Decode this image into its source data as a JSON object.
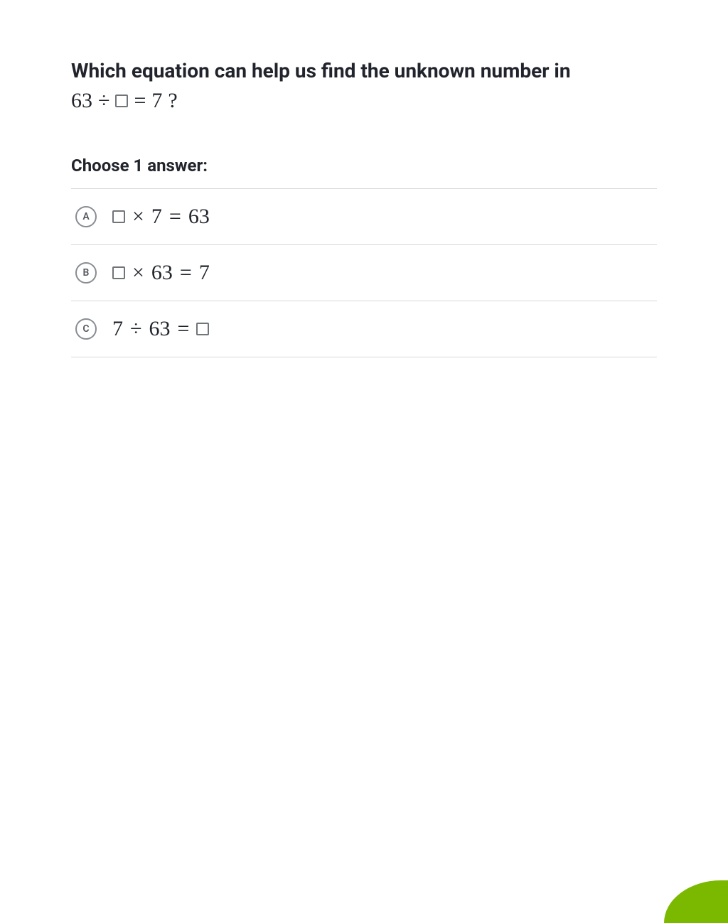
{
  "question": {
    "prompt_text": "Which equation can help us find the unknown number in",
    "equation": {
      "lhs_number": "63",
      "operator": "÷",
      "rhs_number": "7",
      "equals": "=",
      "trailing": "?"
    },
    "instruction": "Choose 1 answer:"
  },
  "answers": [
    {
      "letter": "A",
      "parts": {
        "pre": "",
        "box_first": true,
        "op": "×",
        "a": "7",
        "eq": "=",
        "b": "63",
        "box_last": false
      }
    },
    {
      "letter": "B",
      "parts": {
        "pre": "",
        "box_first": true,
        "op": "×",
        "a": "63",
        "eq": "=",
        "b": "7",
        "box_last": false
      }
    },
    {
      "letter": "C",
      "parts": {
        "pre": "7",
        "box_first": false,
        "op": "÷",
        "a": "63",
        "eq": "=",
        "b": "",
        "box_last": true
      }
    }
  ],
  "style": {
    "text_color": "#21242c",
    "divider_color": "#d6d8da",
    "radio_border": "#888d93",
    "box_border": "#707579",
    "accent_green": "#7bb800",
    "background": "#ffffff",
    "question_fontsize": 28,
    "math_fontsize": 30,
    "instruction_fontsize": 24,
    "radio_letter_fontsize": 14
  }
}
